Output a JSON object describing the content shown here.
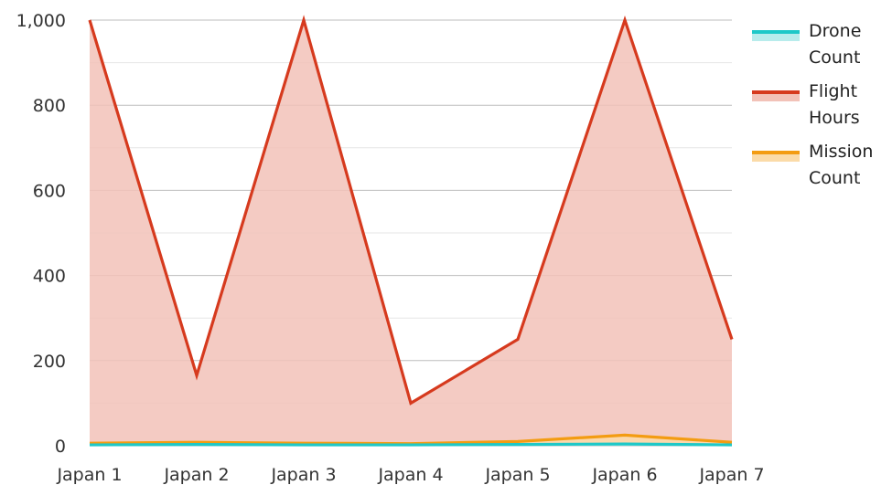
{
  "chart_data": {
    "type": "area",
    "categories": [
      "Japan 1",
      "Japan 2",
      "Japan 3",
      "Japan 4",
      "Japan 5",
      "Japan 6",
      "Japan 7"
    ],
    "series": [
      {
        "name": "Drone Count",
        "color": "#1ec8c8",
        "fill": "#b8ecec",
        "values": [
          2,
          3,
          2,
          2,
          3,
          4,
          2
        ]
      },
      {
        "name": "Flight Hours",
        "color": "#d63a1e",
        "fill": "#f2c2b8",
        "values": [
          1000,
          165,
          1000,
          100,
          250,
          1000,
          250
        ]
      },
      {
        "name": "Mission Count",
        "color": "#f39c12",
        "fill": "#fbdba8",
        "values": [
          6,
          8,
          6,
          5,
          10,
          25,
          8
        ]
      }
    ],
    "ylim": [
      0,
      1000
    ],
    "yticks": [
      "0",
      "200",
      "400",
      "600",
      "800",
      "1,000"
    ],
    "grid": true,
    "legend_position": "right"
  },
  "legend": {
    "items": [
      {
        "label_line1": "Drone",
        "label_line2": "Count"
      },
      {
        "label_line1": "Flight",
        "label_line2": "Hours"
      },
      {
        "label_line1": "Mission",
        "label_line2": "Count"
      }
    ]
  }
}
